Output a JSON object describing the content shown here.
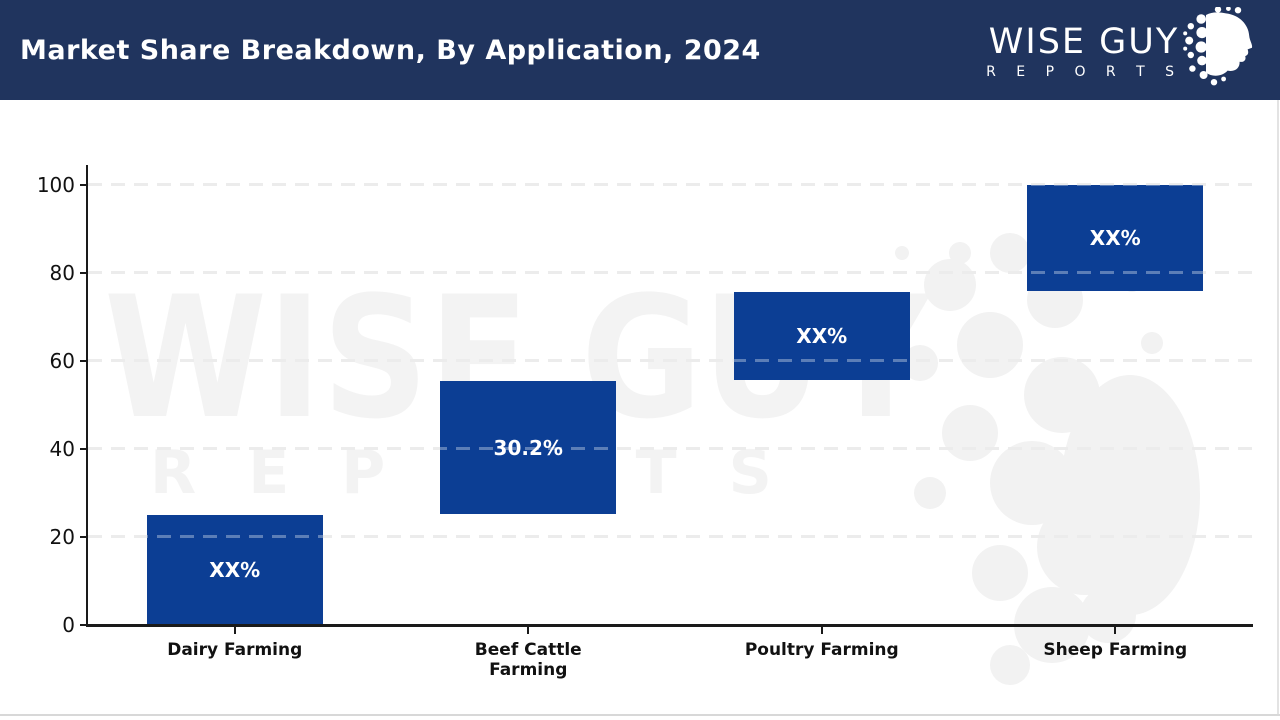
{
  "header": {
    "title": "Market Share Breakdown, By Application, 2024",
    "bg_color": "#20345e",
    "logo": {
      "line1": "WISE GUY",
      "line2": "R E P O R T S"
    }
  },
  "watermark": {
    "line1": "WISE GUY",
    "line2": "REPORTS"
  },
  "chart_data": {
    "type": "bar",
    "subtype": "waterfall-stacked-segments",
    "title": "Market Share Breakdown, By Application, 2024",
    "categories": [
      "Dairy Farming",
      "Beef Cattle Farming",
      "Poultry Farming",
      "Sheep Farming"
    ],
    "segments": [
      {
        "category": "Dairy Farming",
        "start": 0,
        "end": 25,
        "value_label": "XX%"
      },
      {
        "category": "Beef Cattle Farming",
        "start": 25.2,
        "end": 55.4,
        "value_label": "30.2%"
      },
      {
        "category": "Poultry Farming",
        "start": 55.6,
        "end": 75.8,
        "value_label": "XX%"
      },
      {
        "category": "Sheep Farming",
        "start": 76,
        "end": 100,
        "value_label": "XX%"
      }
    ],
    "y_ticks": [
      0,
      20,
      40,
      60,
      80,
      100
    ],
    "ylim": [
      0,
      100
    ],
    "xlabel": "",
    "ylabel": "",
    "grid": "horizontal-dashed",
    "legend": "none",
    "bar_color": "#0c3e94",
    "grid_color": "#e3e3e3",
    "axis_color": "#1a1a1a"
  }
}
